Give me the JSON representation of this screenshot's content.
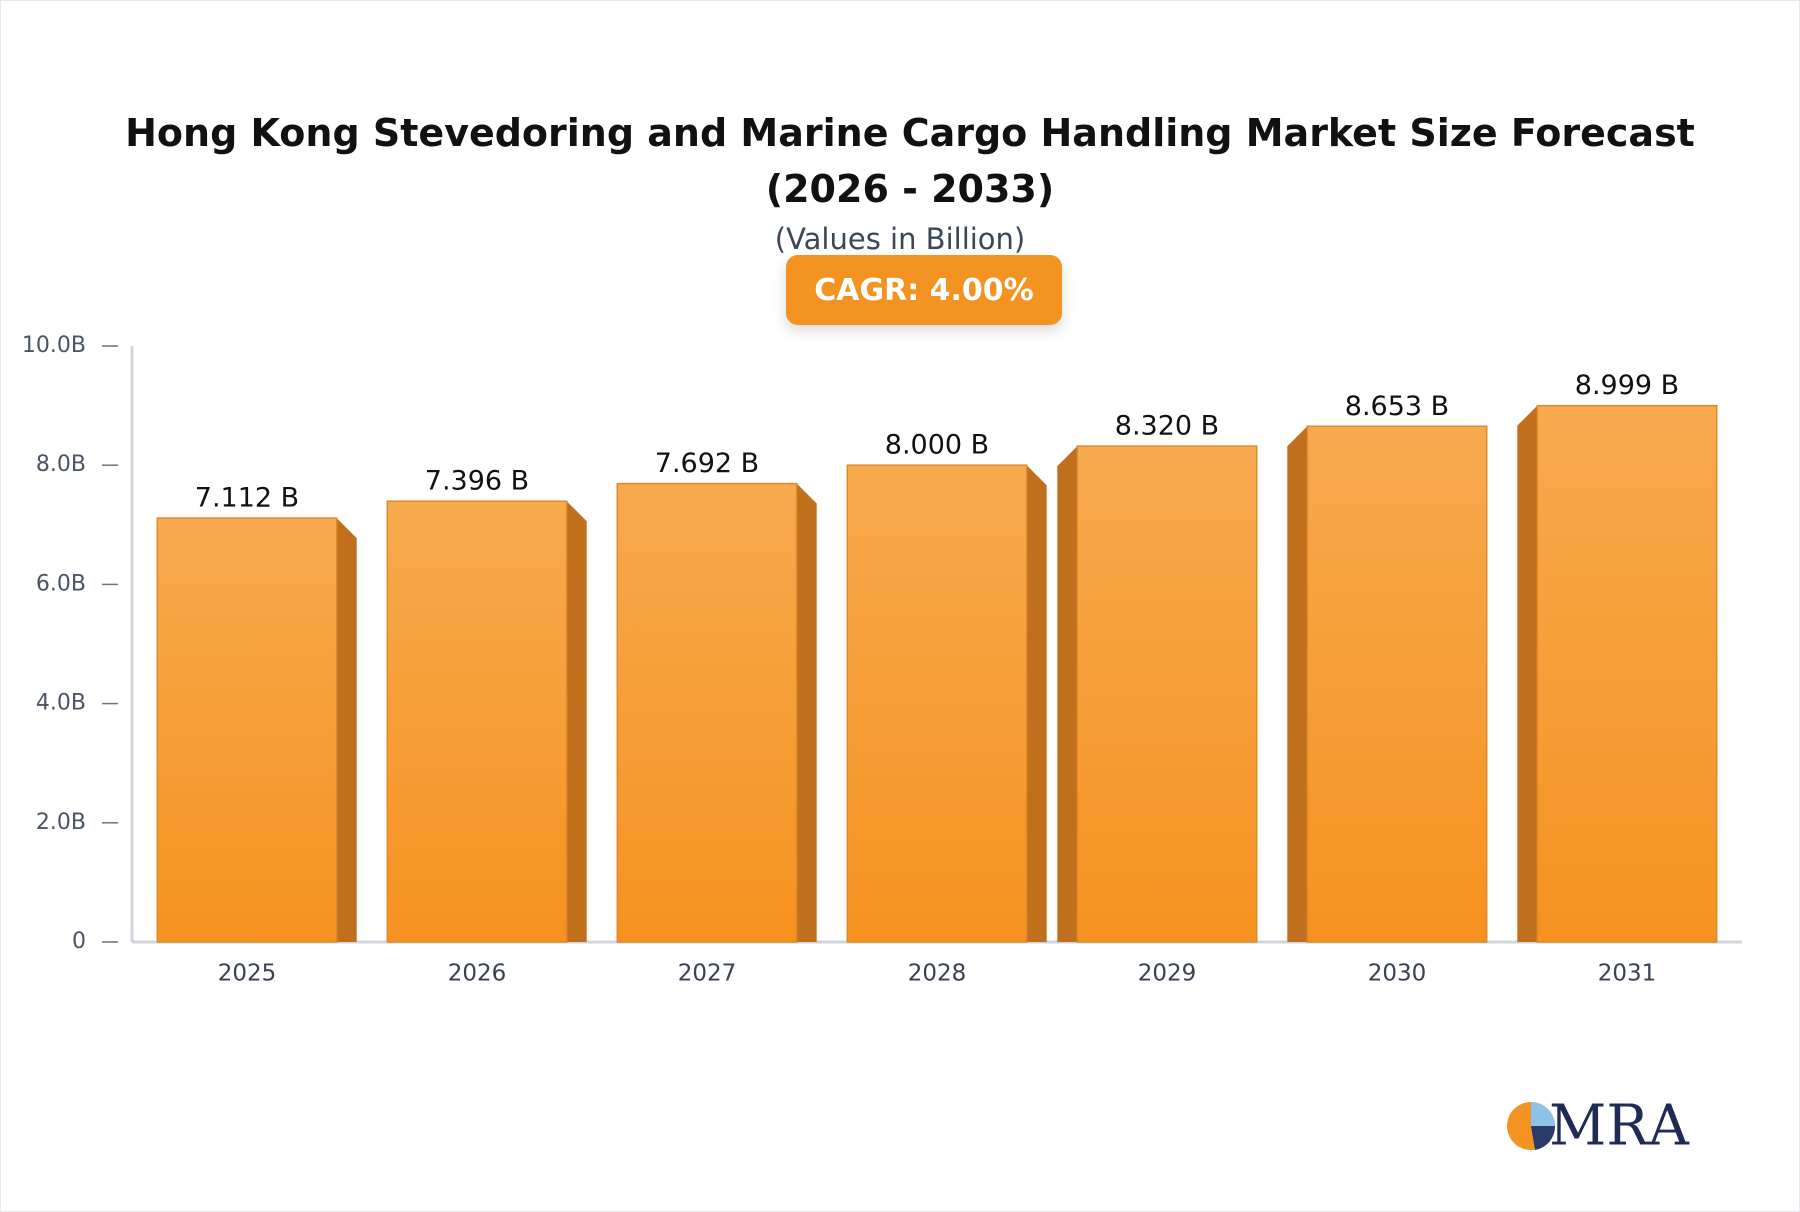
{
  "chart_data": {
    "type": "bar",
    "title": "Hong Kong Stevedoring and Marine Cargo Handling Market Size Forecast (2026 - 2033)",
    "subtitle": "(Values in Billion)",
    "annotation": "CAGR: 4.00%",
    "logo": "MRA",
    "categories": [
      "2025",
      "2026",
      "2027",
      "2028",
      "2029",
      "2030",
      "2031"
    ],
    "values": [
      7.112,
      7.396,
      7.692,
      8.0,
      8.32,
      8.653,
      8.999
    ],
    "value_labels": [
      "7.112 B",
      "7.396 B",
      "7.692 B",
      "8.000 B",
      "8.320 B",
      "8.653 B",
      "8.999 B"
    ],
    "color": "#f5a040",
    "ylim": [
      0,
      10
    ],
    "yticks": [
      0,
      {
        "value": 2,
        "label": "2.0B"
      },
      {
        "value": 4,
        "label": "4.0B"
      },
      {
        "value": 6,
        "label": "6.0B"
      },
      {
        "value": 8,
        "label": "8.0B"
      },
      {
        "value": 10,
        "label": "10.0B"
      }
    ]
  }
}
